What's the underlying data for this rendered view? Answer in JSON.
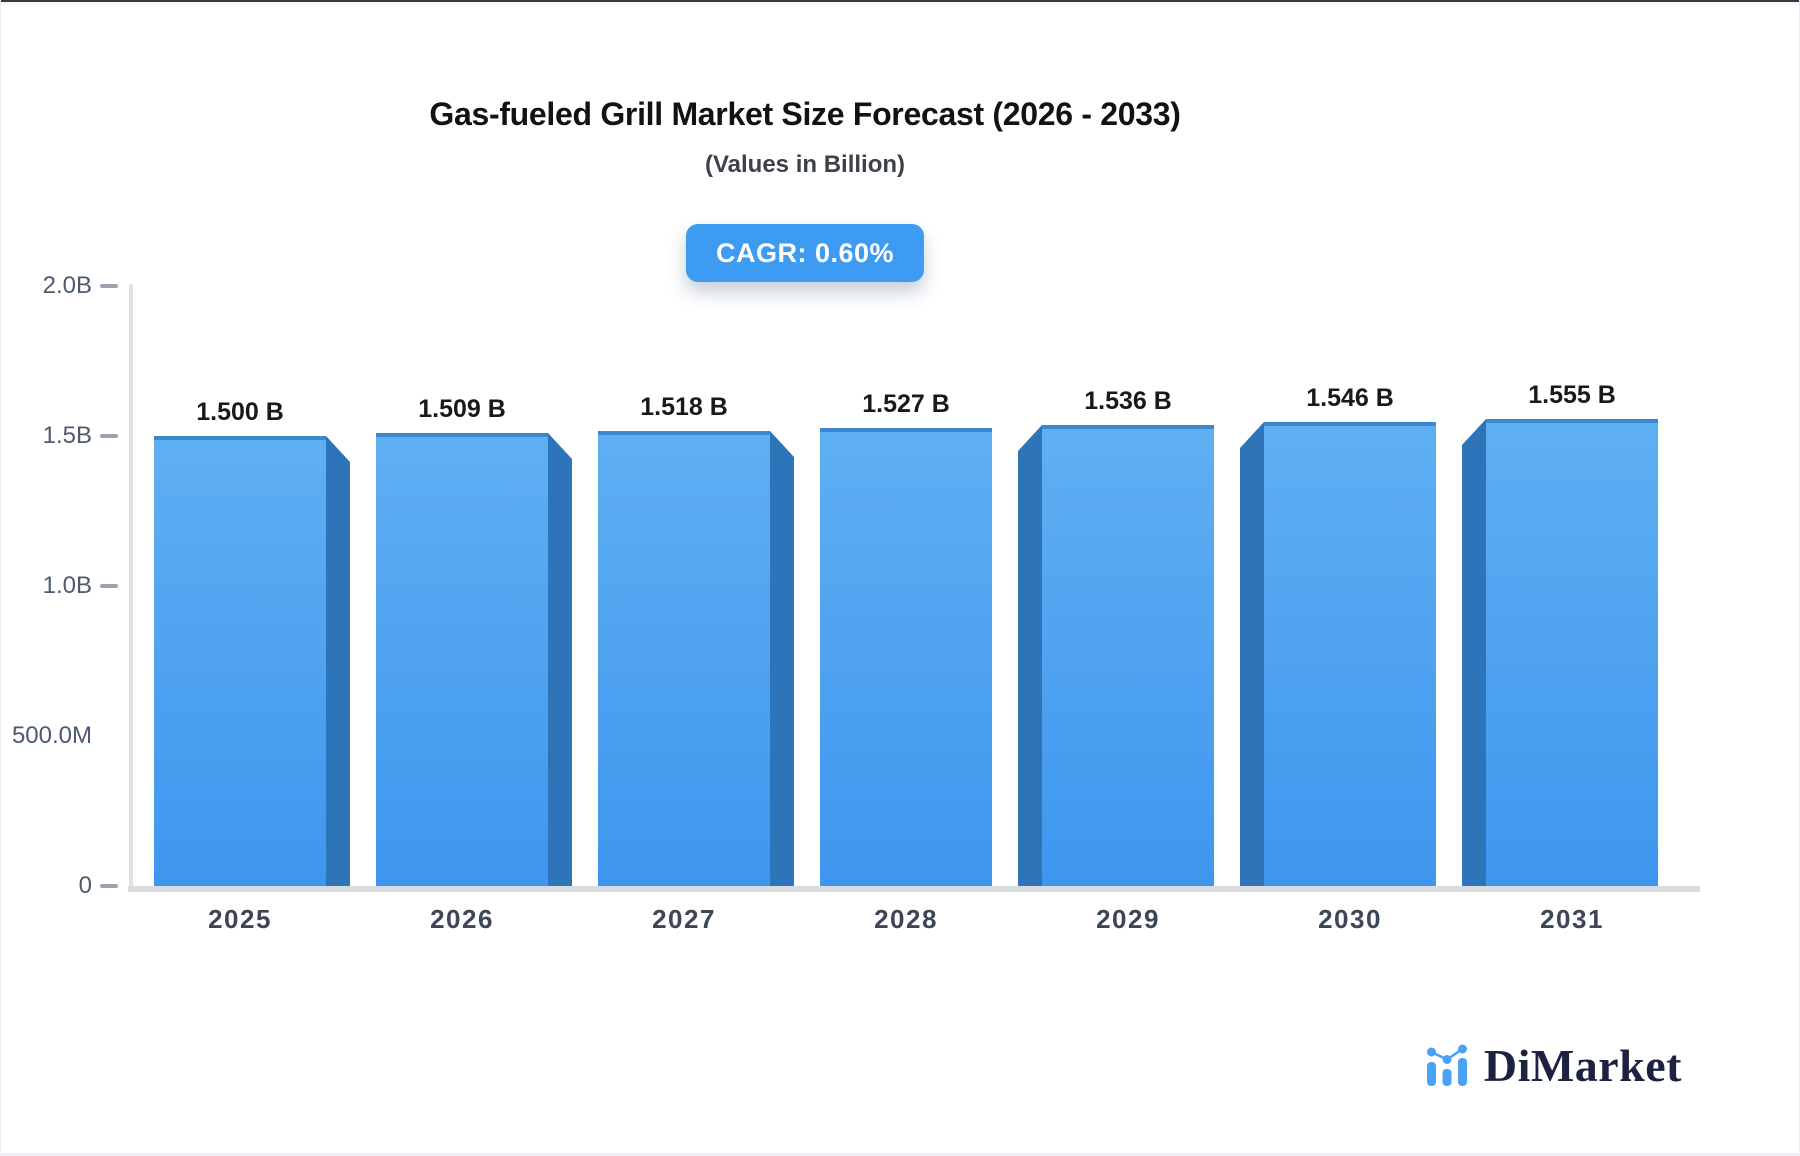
{
  "chart_data": {
    "type": "bar",
    "title": "Gas-fueled Grill Market Size Forecast (2026 - 2033)",
    "subtitle": "(Values in Billion)",
    "cagr_label": "CAGR: 0.60%",
    "categories": [
      "2025",
      "2026",
      "2027",
      "2028",
      "2029",
      "2030",
      "2031"
    ],
    "values": [
      1.5,
      1.509,
      1.518,
      1.527,
      1.536,
      1.546,
      1.555
    ],
    "value_labels": [
      "1.500 B",
      "1.509 B",
      "1.518 B",
      "1.527 B",
      "1.536 B",
      "1.546 B",
      "1.555 B"
    ],
    "xlabel": "",
    "ylabel": "",
    "ylim": [
      0,
      2.0
    ],
    "yticks": [
      {
        "label": "2.0B",
        "value": 2.0,
        "tick": true
      },
      {
        "label": "1.5B",
        "value": 1.5,
        "tick": true
      },
      {
        "label": "1.0B",
        "value": 1.0,
        "tick": true
      },
      {
        "label": "500.0M",
        "value": 0.5,
        "tick": false
      },
      {
        "label": "0",
        "value": 0.0,
        "tick": true
      }
    ],
    "grid": false,
    "legend": "none",
    "colors": {
      "bar_face_top": "#5faff2",
      "bar_face_bottom": "#3e96ee",
      "bar_side": "#2e74b8",
      "bar_top_edge": "#3a87d2"
    }
  },
  "badge": {
    "bg": "#3d9cf1",
    "text_color": "#ffffff"
  },
  "branding": {
    "logo_text": "DiMarket",
    "logo_icon": "bar-chart-dots-icon",
    "logo_text_color": "#1b2340",
    "logo_accent_color": "#4ba2f4"
  }
}
